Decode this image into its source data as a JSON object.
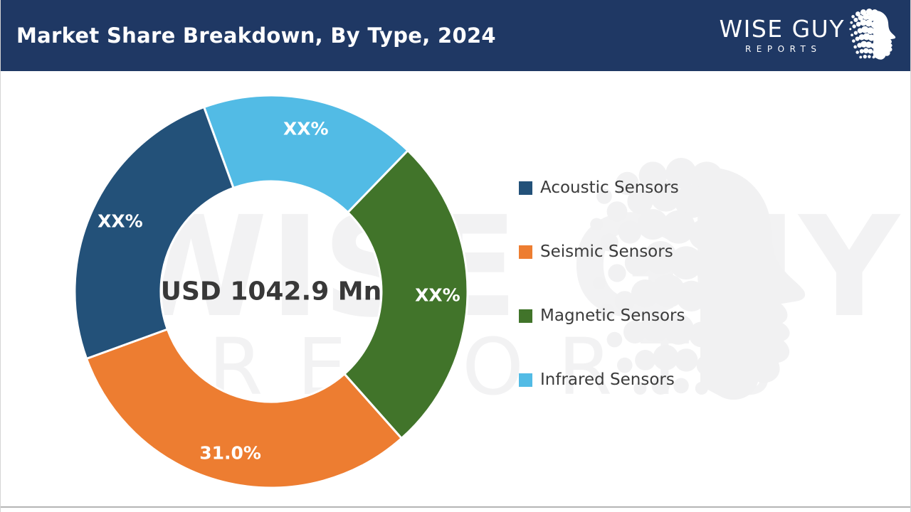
{
  "header": {
    "title": "Market Share Breakdown, By Type, 2024",
    "bg_color": "#1f3864",
    "logo": {
      "wordmark": "WISE GUY",
      "subtitle": "REPORTS"
    }
  },
  "watermark": {
    "line1": "WISE GUY",
    "line2": "REPORTS"
  },
  "chart_data": {
    "type": "pie",
    "subtype": "donut",
    "title": "Market Share Breakdown, By Type, 2024",
    "center_value": "USD 1042.9 Mn",
    "legend_position": "right",
    "segments": [
      {
        "label": "Acoustic Sensors",
        "slice_label": "XX%",
        "value_pct": 25.0,
        "color": "#235179"
      },
      {
        "label": "Seismic Sensors",
        "slice_label": "31.0%",
        "value_pct": 31.0,
        "color": "#ed7d31"
      },
      {
        "label": "Magnetic Sensors",
        "slice_label": "XX%",
        "value_pct": 26.2,
        "color": "#41742a"
      },
      {
        "label": "Infrared Sensors",
        "slice_label": "XX%",
        "value_pct": 17.8,
        "color": "#52bbe5"
      }
    ],
    "layout": {
      "start_angle_deg": -20,
      "draw_order_labels": [
        "Infrared Sensors",
        "Magnetic Sensors",
        "Seismic Sensors",
        "Acoustic Sensors"
      ],
      "donut_hole_ratio": 0.56,
      "separator_color": "#ffffff",
      "grid": false
    }
  }
}
